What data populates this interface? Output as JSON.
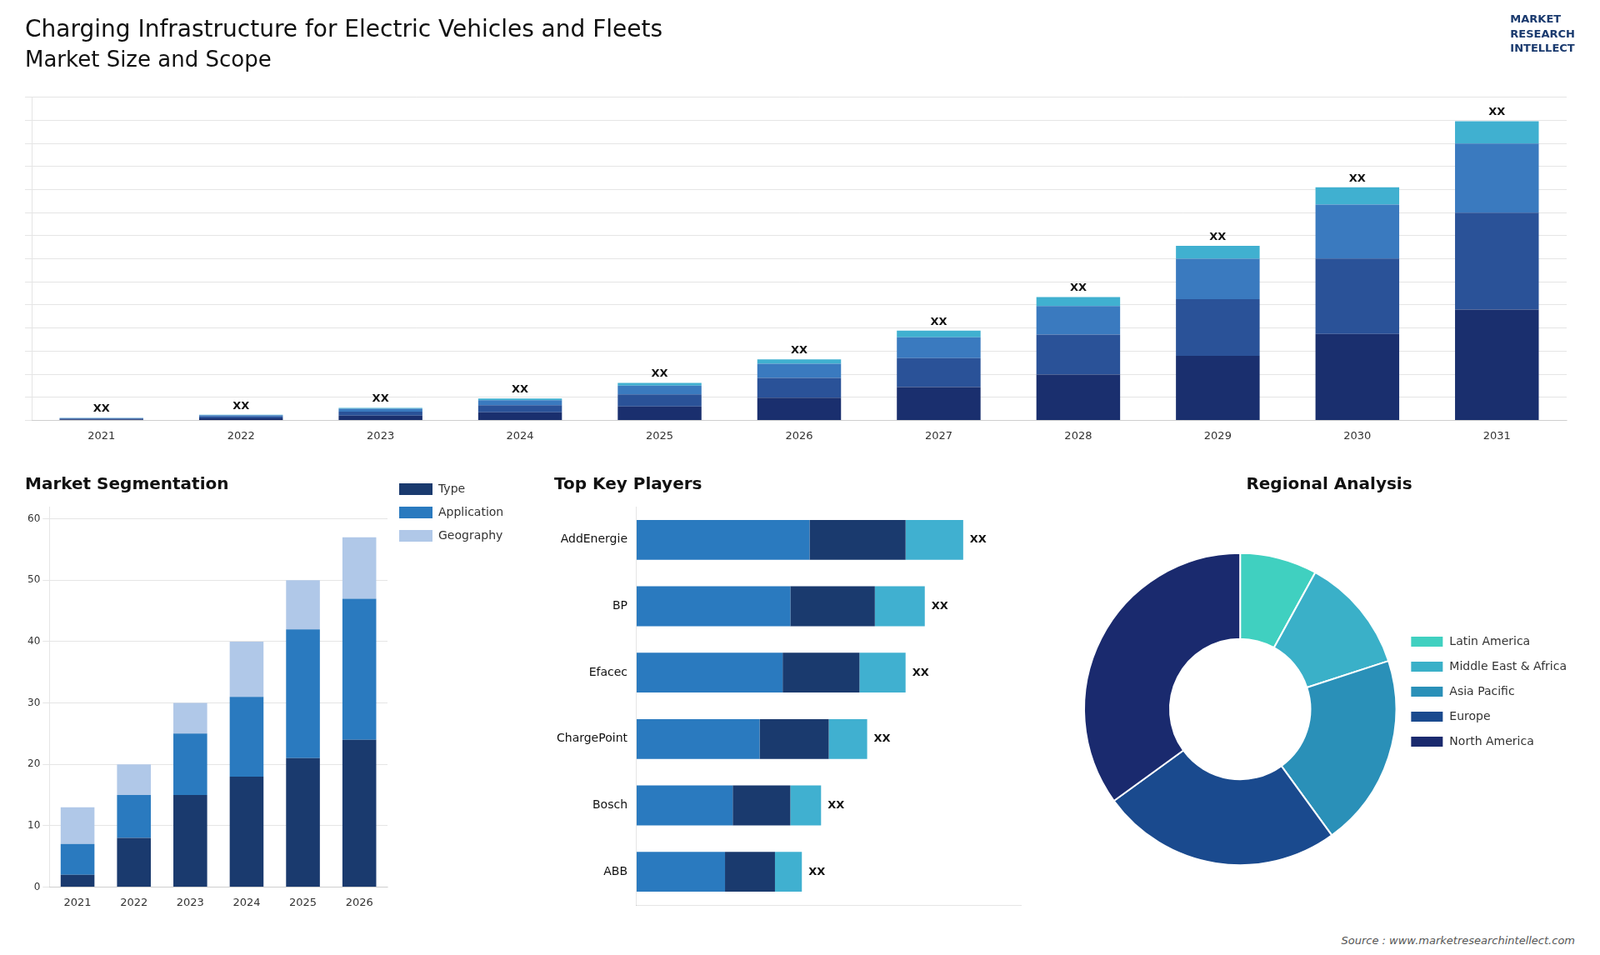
{
  "chart_data": [
    {
      "type": "bar",
      "title": "Charging Infrastructure for Electric Vehicles and Fleets",
      "subtitle": "Market Size and Scope",
      "categories": [
        "2021",
        "2022",
        "2023",
        "2024",
        "2025",
        "2026",
        "2027",
        "2028",
        "2029",
        "2030",
        "2031"
      ],
      "series": [
        {
          "color": "#1a2f6e",
          "values": [
            0.2,
            0.45,
            1,
            1.75,
            3,
            4.9,
            7.2,
            9.9,
            14,
            18.7,
            24
          ]
        },
        {
          "color": "#2a5298",
          "values": [
            0.175,
            0.39375,
            0.875,
            1.53125,
            2.625,
            4.2875,
            6.3,
            8.6625,
            12.25,
            16.3625,
            21
          ]
        },
        {
          "color": "#3a7abf",
          "values": [
            0.125,
            0.28125,
            0.625,
            1.09375,
            1.875,
            3.0625,
            4.5,
            6.1875,
            8.75,
            11.6875,
            15
          ]
        },
        {
          "color": "#40b0d0",
          "values": [
            0.04,
            0.09,
            0.2,
            0.35,
            0.6,
            0.98,
            1.44,
            1.98,
            2.8,
            3.74,
            4.8
          ],
          "value_labels": [
            "XX",
            "XX",
            "XX",
            "XX",
            "XX",
            "XX",
            "XX",
            "XX",
            "XX",
            "XX",
            "XX"
          ]
        }
      ],
      "stacked": true,
      "ylim": [
        0,
        70
      ],
      "yticks": [
        0,
        5,
        10,
        15,
        20,
        25,
        30,
        35,
        40,
        45,
        50,
        55,
        60,
        65,
        70
      ],
      "grid": true,
      "tick_labels": "x",
      "annotations": [
        "MARKET\nRESEARCH\nINTELLECT"
      ]
    },
    {
      "type": "bar",
      "title": "Market Segmentation",
      "categories": [
        "2021",
        "2022",
        "2023",
        "2024",
        "2025",
        "2026"
      ],
      "series": [
        {
          "name": "Type",
          "color": "#1a3a6e",
          "values": [
            2,
            8,
            15,
            18,
            21,
            24
          ]
        },
        {
          "name": "Application",
          "color": "#2a7abf",
          "values": [
            5,
            7,
            10,
            13,
            21,
            23
          ]
        },
        {
          "name": "Geography",
          "color": "#b0c8e8",
          "values": [
            6,
            5,
            5,
            9,
            8,
            10
          ]
        }
      ],
      "stacked": true,
      "ylim": [
        0,
        62
      ],
      "yticks": [
        0,
        10,
        20,
        30,
        40,
        50,
        60
      ],
      "grid": true,
      "legend": "right"
    },
    {
      "type": "bar",
      "title": "Top Key Players",
      "orientation": "horizontal",
      "categories": [
        "AddEnergie",
        "BP",
        "Efacec",
        "ChargePoint",
        "Bosch",
        "ABB"
      ],
      "series": [
        {
          "color": "#2a7abf",
          "values": [
            0.45,
            0.4,
            0.38,
            0.32,
            0.25,
            0.23
          ]
        },
        {
          "color": "#1a3a6e",
          "values": [
            0.25,
            0.22,
            0.2,
            0.18,
            0.15,
            0.13
          ]
        },
        {
          "color": "#40b0d0",
          "values": [
            0.15,
            0.13,
            0.12,
            0.1,
            0.08,
            0.07
          ],
          "value_labels": [
            "XX",
            "XX",
            "XX",
            "XX",
            "XX",
            "XX"
          ]
        }
      ],
      "stacked": true,
      "xlim": [
        0,
        1
      ],
      "grid": false,
      "tick_labels": "y"
    },
    {
      "type": "doughnut",
      "title": "Regional Analysis",
      "categories": [
        "Latin America",
        "Middle East &\nAfrica",
        "Asia Pacific",
        "Europe",
        "North America"
      ],
      "values": [
        8,
        12,
        20,
        25,
        35
      ],
      "colors": [
        "#40d0c0",
        "#3ab0c8",
        "#2a90b8",
        "#1a4a8e",
        "#1a2a6e"
      ],
      "legend": "right",
      "annotations": [
        "Source : www.marketresearchintellect.com"
      ]
    }
  ]
}
